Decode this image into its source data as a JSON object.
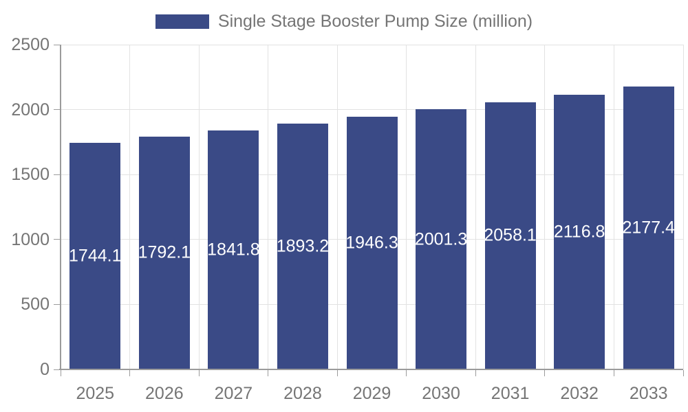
{
  "legend": {
    "series_label": "Single Stage Booster Pump Size (million)"
  },
  "colors": {
    "bar": "#3A4A86",
    "bar_label": "#FFFFFF",
    "axis_line": "#9B9B9B",
    "tick_mark": "#9B9B9B",
    "grid_line": "#E2E2E2",
    "tick_label": "#757575",
    "legend_text": "#757575",
    "background": "#FFFFFF"
  },
  "chart_data": {
    "type": "bar",
    "title": "Single Stage Booster Pump Size (million)",
    "categories": [
      "2025",
      "2026",
      "2027",
      "2028",
      "2029",
      "2030",
      "2031",
      "2032",
      "2033"
    ],
    "series": [
      {
        "name": "Single Stage Booster Pump Size (million)",
        "values": [
          1744.1,
          1792.1,
          1841.8,
          1893.2,
          1946.3,
          2001.3,
          2058.1,
          2116.8,
          2177.4
        ]
      }
    ],
    "xlabel": "",
    "ylabel": "",
    "ylim": [
      0,
      2500
    ],
    "yticks": [
      0,
      500,
      1000,
      1500,
      2000,
      2500
    ],
    "grid": "horizontal-and-vertical",
    "legend_position": "top-center",
    "data_labels": "inside-center"
  }
}
